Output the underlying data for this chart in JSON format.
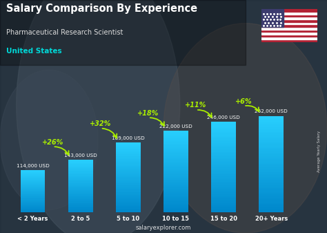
{
  "title": "Salary Comparison By Experience",
  "subtitle": "Pharmaceutical Research Scientist",
  "country": "United States",
  "categories": [
    "< 2 Years",
    "2 to 5",
    "5 to 10",
    "10 to 15",
    "15 to 20",
    "20+ Years"
  ],
  "values": [
    114000,
    143000,
    189000,
    222000,
    246000,
    262000
  ],
  "labels": [
    "114,000 USD",
    "143,000 USD",
    "189,000 USD",
    "222,000 USD",
    "246,000 USD",
    "262,000 USD"
  ],
  "pct_labels": [
    "+26%",
    "+32%",
    "+18%",
    "+11%",
    "+6%"
  ],
  "bar_color_top": "#29d0ff",
  "bar_color_bottom": "#0088cc",
  "bg_top": "#4a5a6a",
  "bg_bottom": "#2a3a48",
  "text_color_white": "#ffffff",
  "text_color_cyan": "#00d8d8",
  "text_color_green": "#aaee00",
  "footer": "salaryexplorer.com",
  "side_label": "Average Yearly Salary",
  "ylim": [
    0,
    330000
  ],
  "fig_width": 4.74,
  "fig_height": 3.37,
  "dpi": 100
}
